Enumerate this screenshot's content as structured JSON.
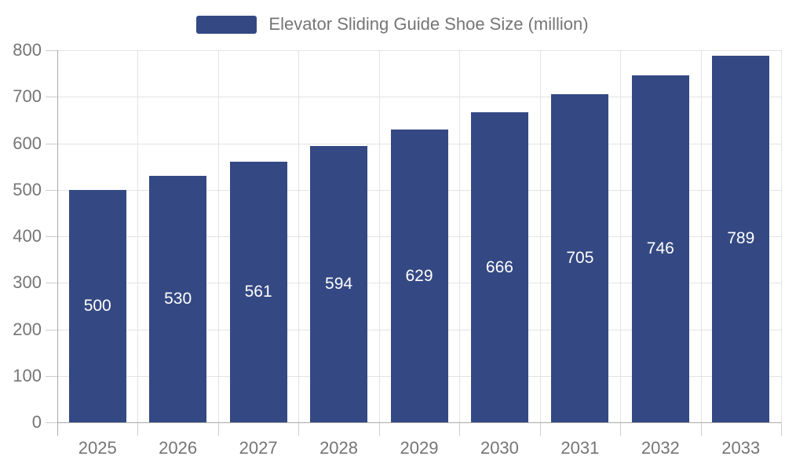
{
  "legend": {
    "items": [
      {
        "label": "Elevator Sliding Guide Shoe Size (million)",
        "color": "#344883"
      }
    ],
    "position": "top-center"
  },
  "chart_data": {
    "type": "bar",
    "title": "",
    "xlabel": "",
    "ylabel": "",
    "categories": [
      "2025",
      "2026",
      "2027",
      "2028",
      "2029",
      "2030",
      "2031",
      "2032",
      "2033"
    ],
    "series": [
      {
        "name": "Elevator Sliding Guide Shoe Size (million)",
        "values": [
          500,
          530,
          561,
          594,
          629,
          666,
          705,
          746,
          789
        ],
        "color": "#344883"
      }
    ],
    "value_labels": {
      "visible": true,
      "position": "inside-center",
      "color": "#ffffff"
    },
    "ylim": [
      0,
      800
    ],
    "yticks": [
      0,
      100,
      200,
      300,
      400,
      500,
      600,
      700,
      800
    ],
    "grid": {
      "horizontal": true,
      "vertical": true,
      "color": "#e3e3e3"
    },
    "legend_position": "top",
    "colors": {
      "bar": "#344883",
      "axis_line": "#aaaaaa",
      "tick": "#cccccc",
      "tick_label": "#757575",
      "legend_text": "#757575",
      "background": "#ffffff"
    }
  }
}
